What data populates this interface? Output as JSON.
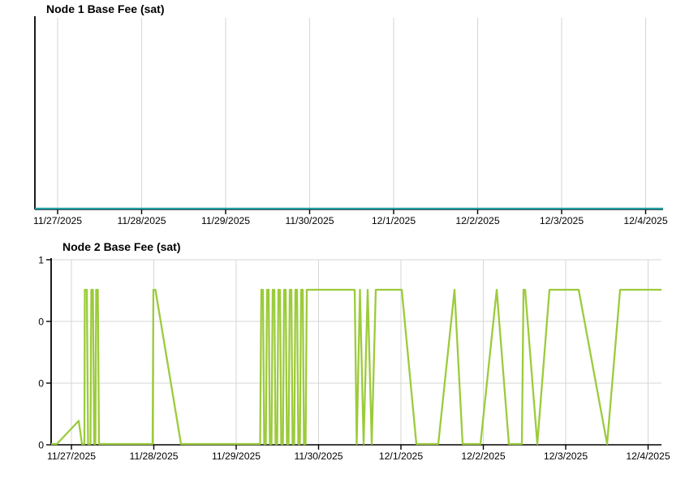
{
  "page": {
    "background_color": "#ffffff",
    "text_color": "#000000",
    "grid_color": "#d6d6d6",
    "axis_color": "#000000"
  },
  "chart_data": [
    {
      "type": "line",
      "title": "Node 1 Base Fee (sat)",
      "series_name": "Node 1 Base Fee",
      "line_color": "#219fa3",
      "x_tick_labels": [
        "11/27/2025",
        "11/28/2025",
        "11/29/2025",
        "11/30/2025",
        "12/1/2025",
        "12/2/2025",
        "12/3/2025",
        "12/4/2025"
      ],
      "y_axis": {
        "tick_labels": [],
        "note": "no y tick labels visible; flat series at 0"
      },
      "grid": "vertical-gridlines-only",
      "legend": "none",
      "points_day_value": [
        [
          -0.271,
          0
        ],
        [
          7.208,
          0
        ]
      ]
    },
    {
      "type": "line",
      "title": "Node 2 Base Fee (sat)",
      "series_name": "Node 2 Base Fee",
      "line_color": "#9ccb3b",
      "x_tick_labels": [
        "11/27/2025",
        "11/28/2025",
        "11/29/2025",
        "11/30/2025",
        "12/1/2025",
        "12/2/2025",
        "12/3/2025",
        "12/4/2025"
      ],
      "y_axis": {
        "min": 0,
        "max": 1.2,
        "tick_values": [
          1.2,
          0.8,
          0.4,
          0
        ],
        "tick_labels": [
          "1",
          "0",
          "0",
          "0"
        ]
      },
      "grid": "both",
      "legend": "none",
      "points_day_value": [
        [
          -0.246,
          0
        ],
        [
          -0.177,
          0
        ],
        [
          0.089,
          0.15
        ],
        [
          0.128,
          0
        ],
        [
          0.158,
          0
        ],
        [
          0.163,
          1
        ],
        [
          0.187,
          1
        ],
        [
          0.202,
          0
        ],
        [
          0.232,
          0
        ],
        [
          0.241,
          1
        ],
        [
          0.261,
          1
        ],
        [
          0.276,
          0
        ],
        [
          0.291,
          0
        ],
        [
          0.3,
          1
        ],
        [
          0.32,
          1
        ],
        [
          0.335,
          0
        ],
        [
          0.985,
          0
        ],
        [
          0.995,
          1
        ],
        [
          1.02,
          1
        ],
        [
          1.33,
          0
        ],
        [
          2.291,
          0
        ],
        [
          2.305,
          1
        ],
        [
          2.325,
          1
        ],
        [
          2.34,
          0
        ],
        [
          2.36,
          0
        ],
        [
          2.374,
          1
        ],
        [
          2.394,
          1
        ],
        [
          2.409,
          0
        ],
        [
          2.429,
          0
        ],
        [
          2.443,
          1
        ],
        [
          2.463,
          1
        ],
        [
          2.478,
          0
        ],
        [
          2.498,
          0
        ],
        [
          2.512,
          1
        ],
        [
          2.532,
          1
        ],
        [
          2.547,
          0
        ],
        [
          2.567,
          0
        ],
        [
          2.581,
          1
        ],
        [
          2.601,
          1
        ],
        [
          2.616,
          0
        ],
        [
          2.635,
          0
        ],
        [
          2.65,
          1
        ],
        [
          2.67,
          1
        ],
        [
          2.685,
          0
        ],
        [
          2.704,
          0
        ],
        [
          2.719,
          1
        ],
        [
          2.739,
          1
        ],
        [
          2.754,
          0
        ],
        [
          2.773,
          0
        ],
        [
          2.788,
          1
        ],
        [
          2.808,
          1
        ],
        [
          2.823,
          0
        ],
        [
          2.842,
          0
        ],
        [
          2.857,
          1
        ],
        [
          3.438,
          1
        ],
        [
          3.463,
          0
        ],
        [
          3.502,
          1
        ],
        [
          3.547,
          0
        ],
        [
          3.596,
          1
        ],
        [
          3.645,
          0
        ],
        [
          3.695,
          1
        ],
        [
          4.01,
          1
        ],
        [
          4.187,
          0
        ],
        [
          4.453,
          0
        ],
        [
          4.65,
          1
        ],
        [
          4.749,
          0
        ],
        [
          4.966,
          0
        ],
        [
          5.163,
          1
        ],
        [
          5.31,
          0
        ],
        [
          5.468,
          0
        ],
        [
          5.488,
          1
        ],
        [
          5.507,
          1
        ],
        [
          5.655,
          0
        ],
        [
          5.803,
          1
        ],
        [
          6.158,
          1
        ],
        [
          6.502,
          0
        ],
        [
          6.66,
          1
        ],
        [
          7.163,
          1
        ]
      ]
    }
  ]
}
